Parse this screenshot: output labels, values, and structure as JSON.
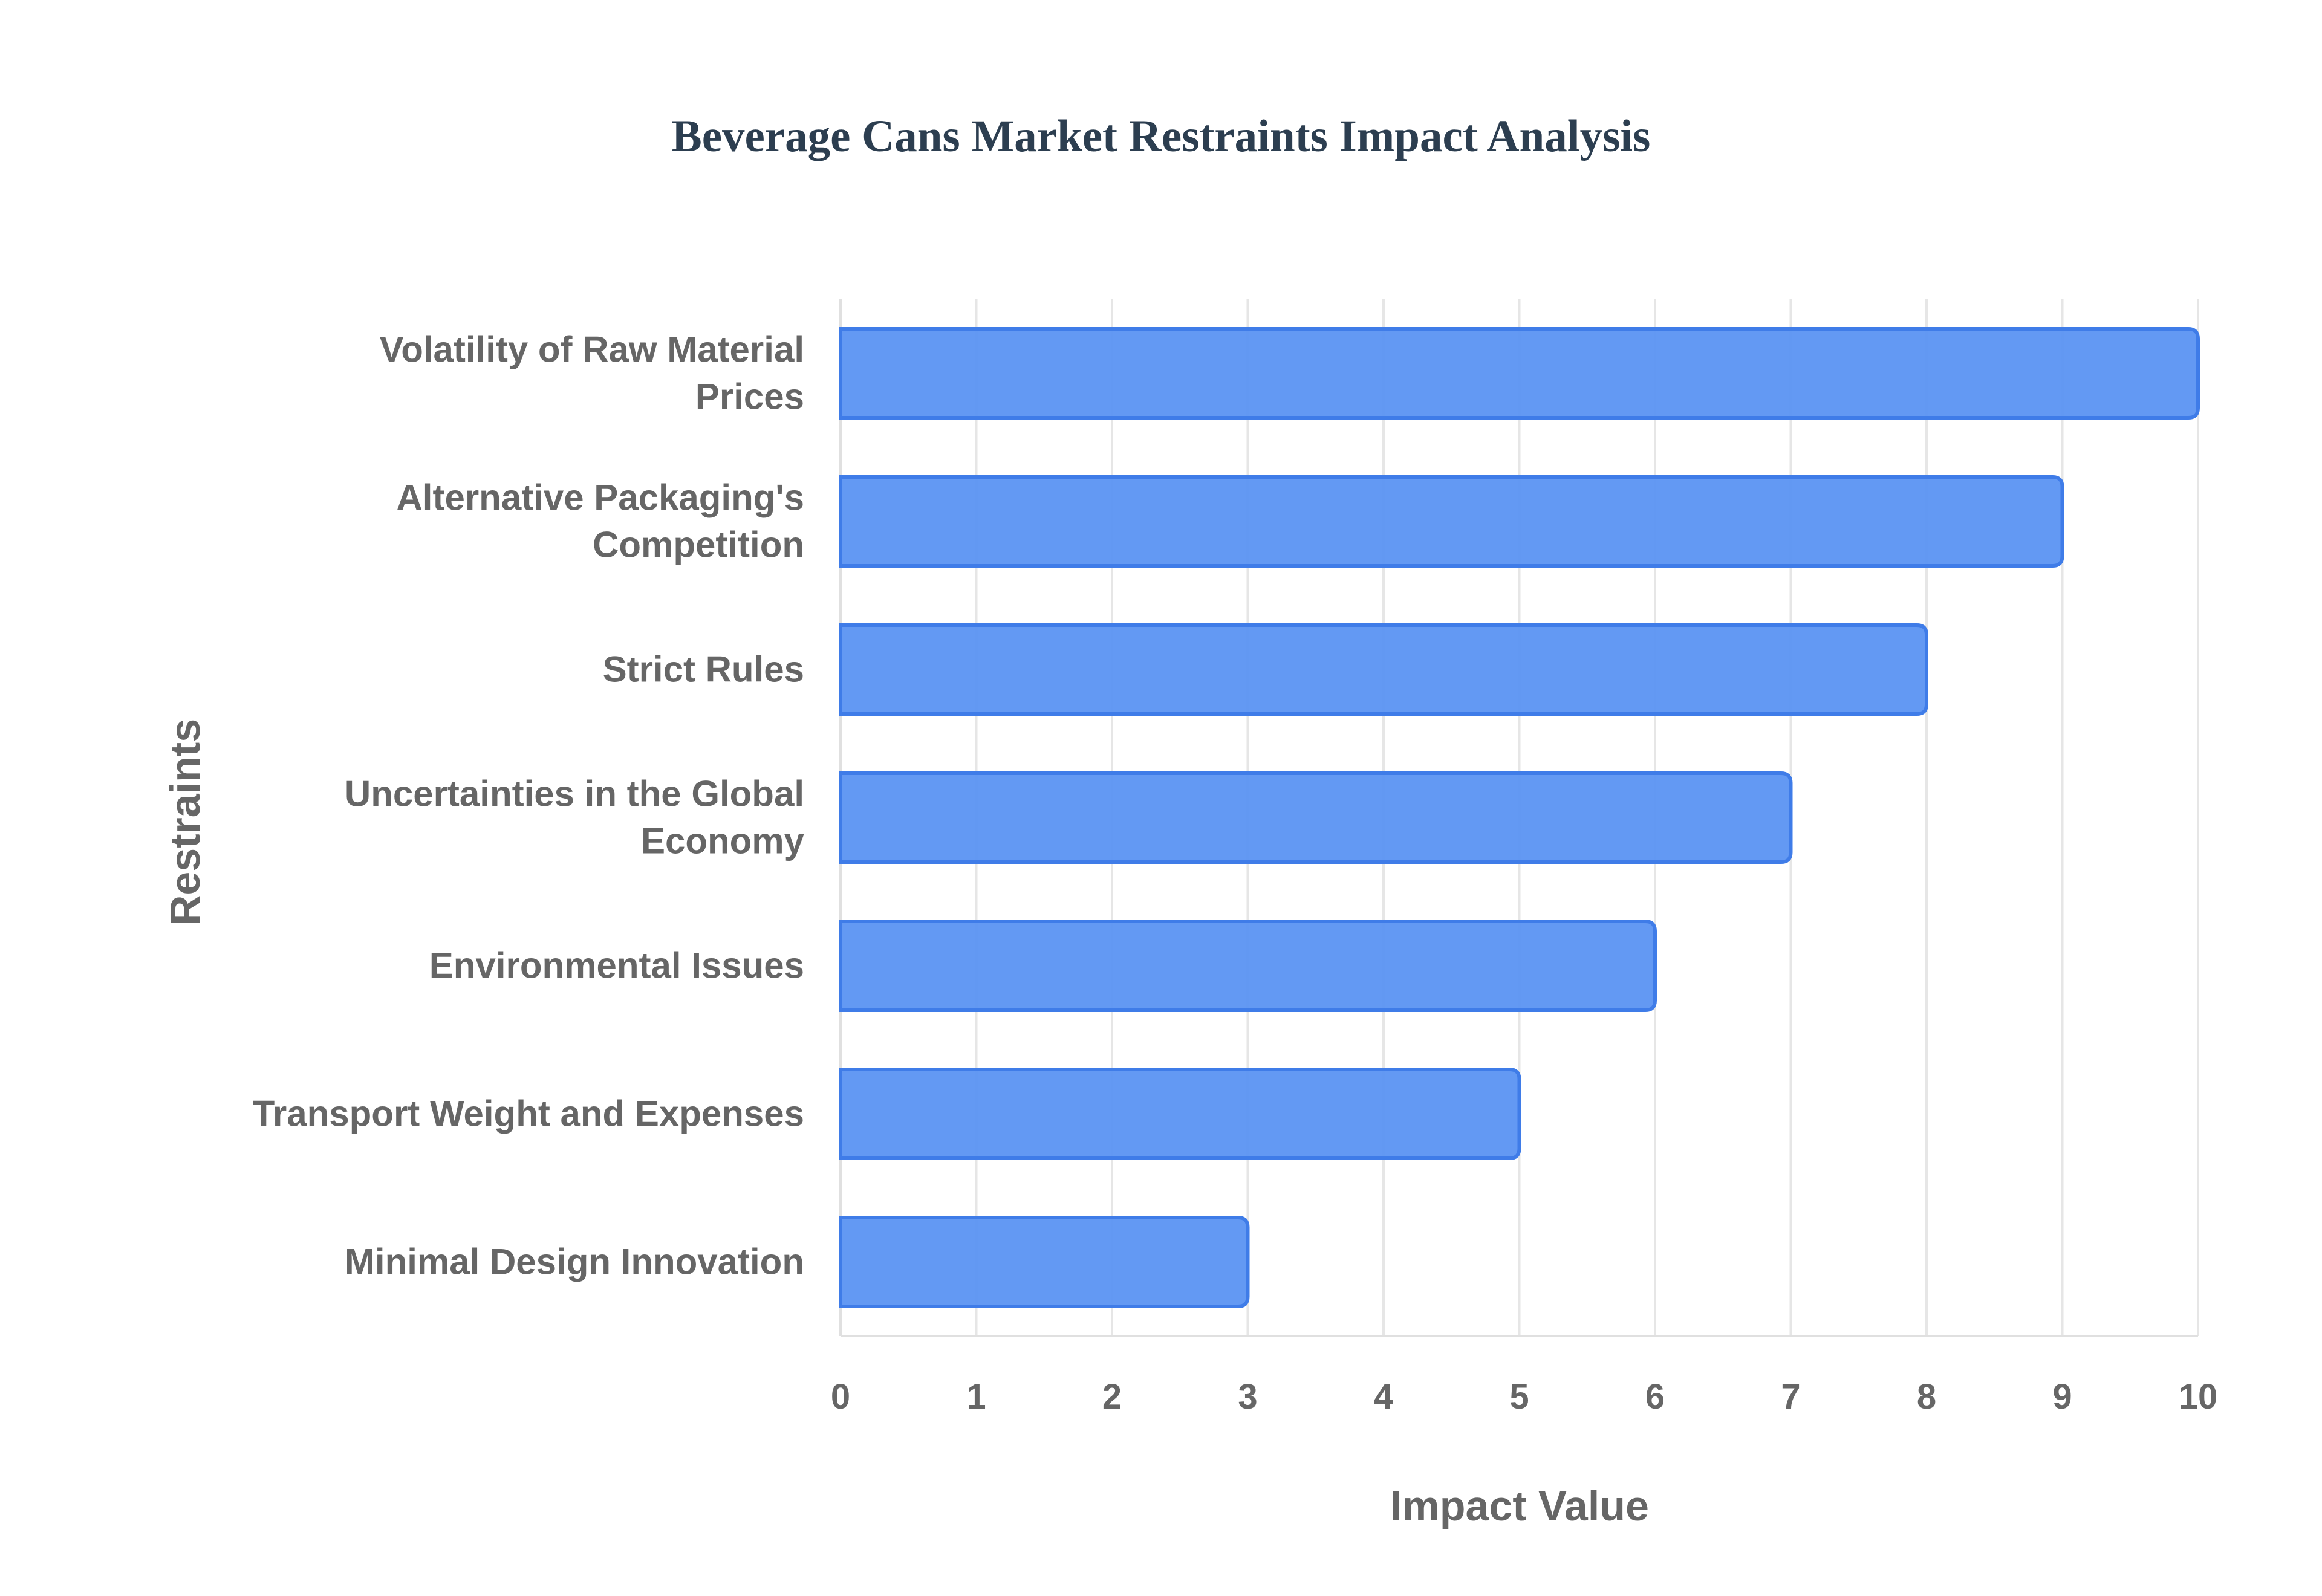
{
  "chart_data": {
    "type": "bar",
    "orientation": "horizontal",
    "title": "Beverage Cans Market Restraints Impact Analysis",
    "xlabel": "Impact Value",
    "ylabel": "Restraints",
    "xlim": [
      0,
      10
    ],
    "xticks": [
      0,
      1,
      2,
      3,
      4,
      5,
      6,
      7,
      8,
      9,
      10
    ],
    "grid": true,
    "categories": [
      "Volatility of Raw Material Prices",
      "Alternative Packaging's Competition",
      "Strict Rules",
      "Uncertainties in the Global Economy",
      "Environmental Issues",
      "Transport Weight and Expenses",
      "Minimal Design Innovation"
    ],
    "category_lines": [
      [
        "Volatility of Raw Material",
        "Prices"
      ],
      [
        "Alternative Packaging's",
        "Competition"
      ],
      [
        "Strict Rules"
      ],
      [
        "Uncertainties in the Global",
        "Economy"
      ],
      [
        "Environmental Issues"
      ],
      [
        "Transport Weight and Expenses"
      ],
      [
        "Minimal Design Innovation"
      ]
    ],
    "values": [
      10,
      9,
      8,
      7,
      6,
      5,
      3
    ],
    "colors": {
      "bar_fill": "#5b93f2",
      "bar_border": "#3f7ce8",
      "title": "#2c3e50",
      "text": "#666666",
      "grid": "#e6e6e6"
    }
  }
}
